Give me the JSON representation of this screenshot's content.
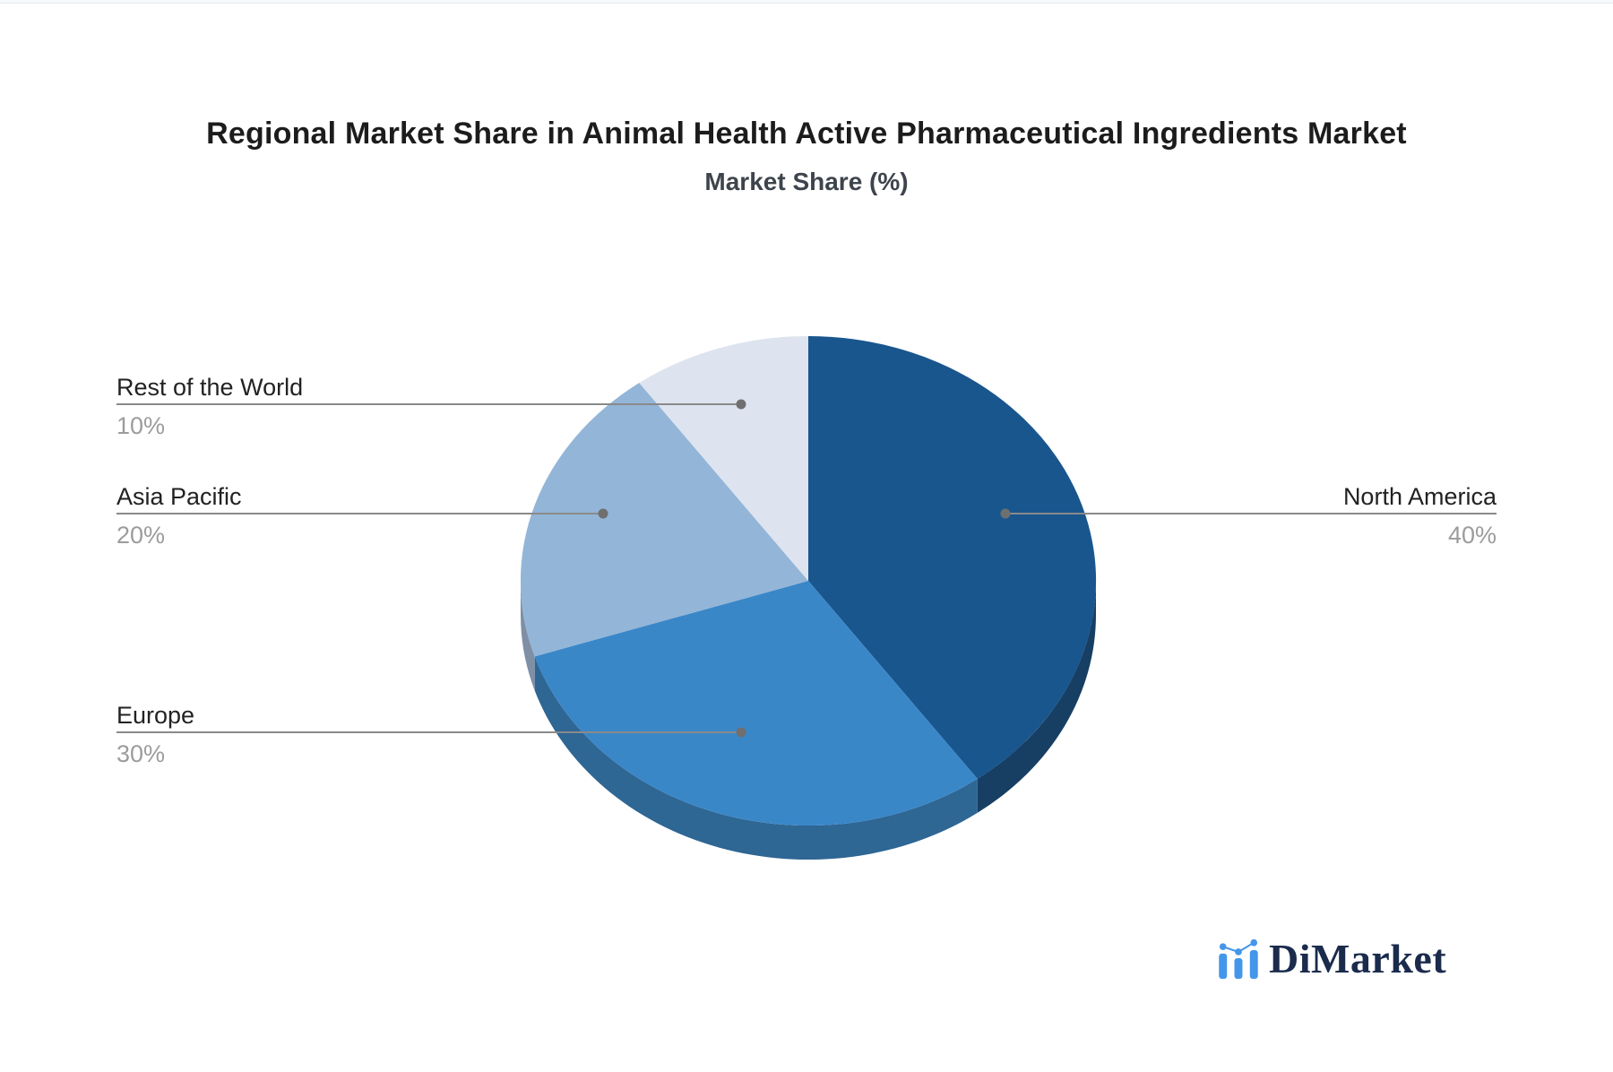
{
  "title": "Regional Market Share in Animal Health Active Pharmaceutical Ingredients Market",
  "subtitle": "Market Share (%)",
  "chart_data": {
    "type": "pie",
    "style": "3d",
    "title": "Regional Market Share in Animal Health Active Pharmaceutical Ingredients Market",
    "subtitle": "Market Share (%)",
    "unit": "%",
    "start_angle_deg": 0,
    "direction": "clockwise",
    "legend": "none",
    "slices": [
      {
        "label": "North America",
        "value": 40,
        "pct": "40%",
        "color": "#19568E",
        "side_color": "#173E63"
      },
      {
        "label": "Europe",
        "value": 30,
        "pct": "30%",
        "color": "#3A87C8",
        "side_color": "#2E6694"
      },
      {
        "label": "Asia Pacific",
        "value": 20,
        "pct": "20%",
        "color": "#93B5D8",
        "side_color": "#7E8FA6"
      },
      {
        "label": "Rest of the World",
        "value": 10,
        "pct": "10%",
        "color": "#DDE4EF",
        "side_color": "#B9C4D4"
      }
    ],
    "label_line_color": "#8a8a8a",
    "label_dot_color": "#6f6f6f"
  },
  "logo": {
    "text": "DiMarket",
    "icon": "bar-chart-trend-icon",
    "icon_color": "#4496ea"
  }
}
